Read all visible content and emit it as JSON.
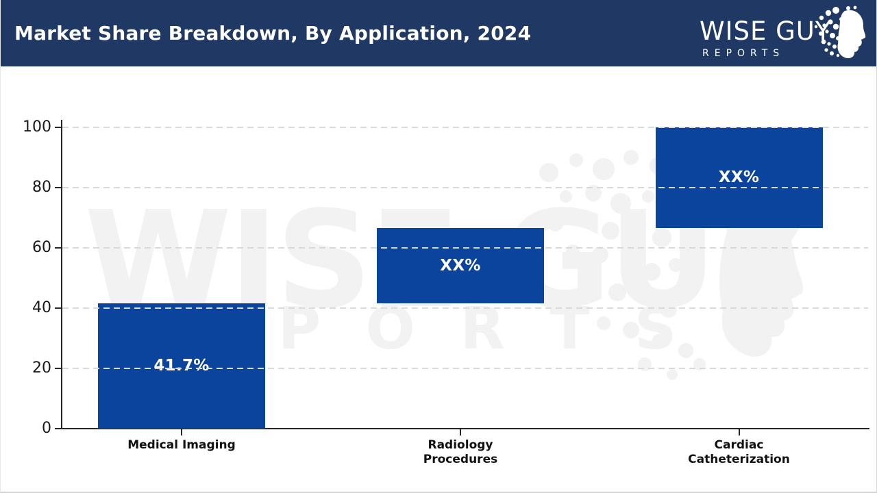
{
  "header": {
    "title": "Market Share Breakdown, By Application, 2024",
    "bg_color": "#1f3864",
    "logo": {
      "line1": "WISE GUY",
      "line2": "R E P O R T S"
    }
  },
  "watermark": {
    "line1": "WISE GUY",
    "line2": "R E P O R T S"
  },
  "chart_data": {
    "type": "bar",
    "subtype": "waterfall-floating-bars",
    "title": "Market Share Breakdown, By Application, 2024",
    "categories": [
      "Medical Imaging",
      "Radiology\nProcedures",
      "Cardiac\nCatheterization"
    ],
    "bars": [
      {
        "category": "Medical Imaging",
        "start": 0,
        "end": 41.7,
        "label": "41.7%"
      },
      {
        "category": "Radiology Procedures",
        "start": 41.7,
        "end": 66.7,
        "label": "XX%"
      },
      {
        "category": "Cardiac Catheterization",
        "start": 66.7,
        "end": 100,
        "label": "XX%"
      }
    ],
    "yticks": [
      0,
      20,
      40,
      60,
      80,
      100
    ],
    "ylim": [
      0,
      102.5
    ],
    "xlabel": "",
    "ylabel": "",
    "bar_color": "#0a449c",
    "grid": true,
    "grid_style": "dashed",
    "grid_color": "#d9d9d9",
    "legend": false
  }
}
